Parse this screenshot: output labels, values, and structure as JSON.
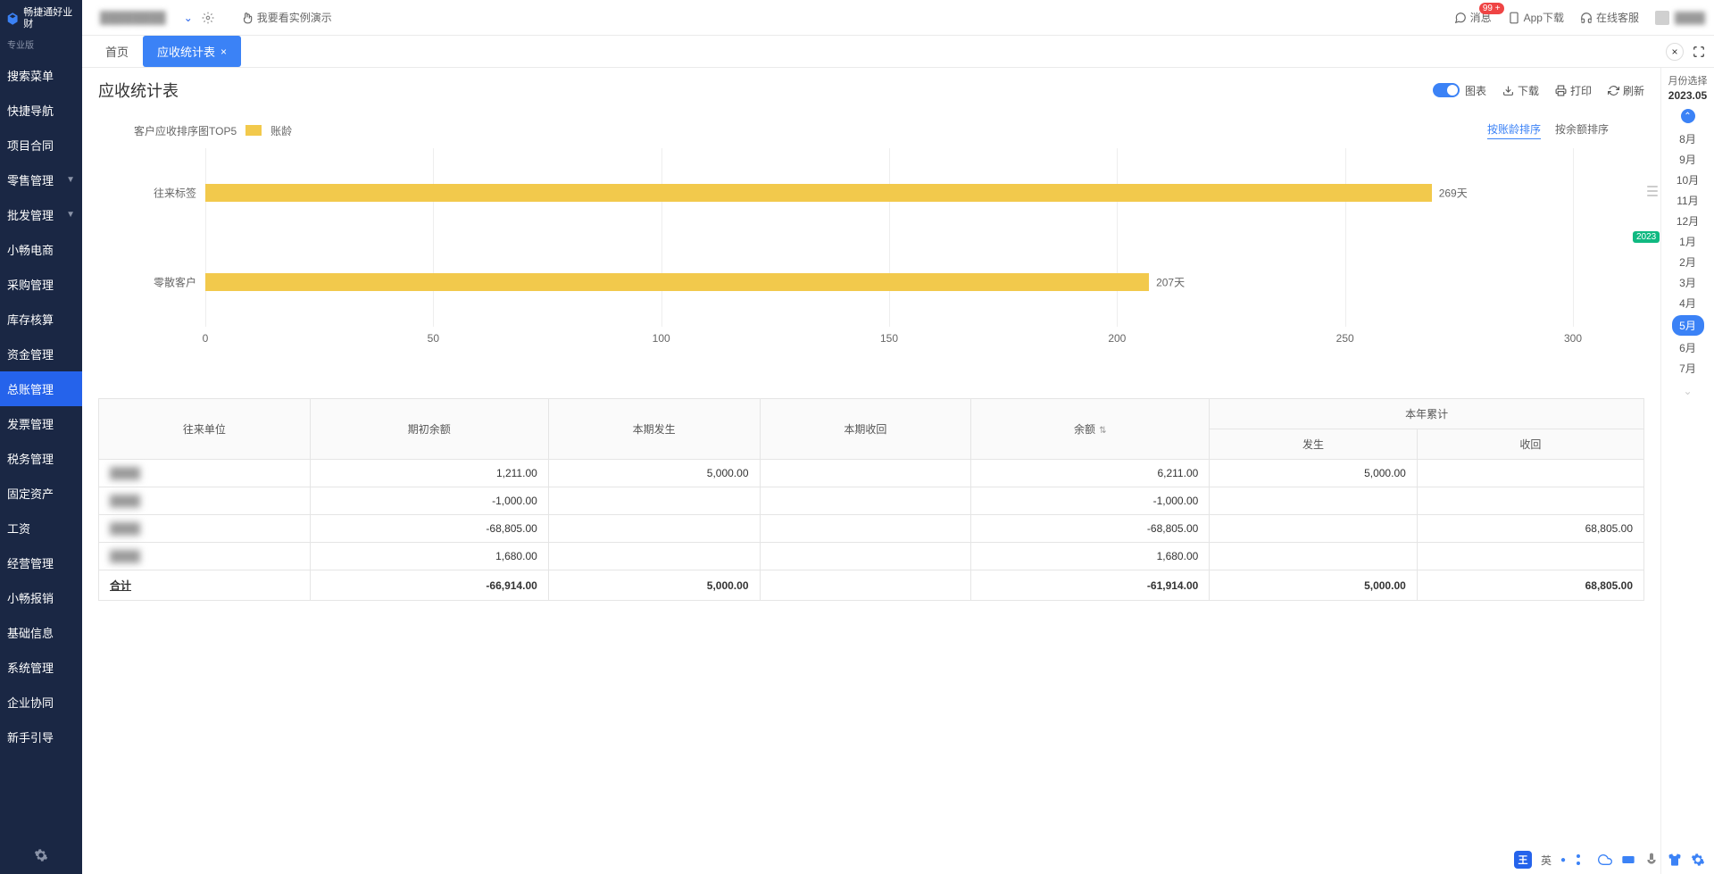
{
  "brand": {
    "name": "畅捷通好业财",
    "edition": "专业版"
  },
  "header": {
    "company": "████████",
    "demo": "我要看实例演示",
    "msg": "消息",
    "msg_badge": "99 +",
    "app": "App下载",
    "service": "在线客服",
    "user": "████"
  },
  "sidebar": {
    "items": [
      {
        "label": "搜索菜单",
        "chev": false
      },
      {
        "label": "快捷导航",
        "chev": false
      },
      {
        "label": "项目合同",
        "chev": false
      },
      {
        "label": "零售管理",
        "chev": true
      },
      {
        "label": "批发管理",
        "chev": true
      },
      {
        "label": "小畅电商",
        "chev": false
      },
      {
        "label": "采购管理",
        "chev": false
      },
      {
        "label": "库存核算",
        "chev": false
      },
      {
        "label": "资金管理",
        "chev": false
      },
      {
        "label": "总账管理",
        "chev": false,
        "active": true
      },
      {
        "label": "发票管理",
        "chev": false
      },
      {
        "label": "税务管理",
        "chev": false
      },
      {
        "label": "固定资产",
        "chev": false
      },
      {
        "label": "工资",
        "chev": false
      },
      {
        "label": "经营管理",
        "chev": false
      },
      {
        "label": "小畅报销",
        "chev": false
      },
      {
        "label": "基础信息",
        "chev": false
      },
      {
        "label": "系统管理",
        "chev": false
      },
      {
        "label": "企业协同",
        "chev": false
      },
      {
        "label": "新手引导",
        "chev": false
      }
    ]
  },
  "tabs": {
    "home": "首页",
    "active": "应收统计表"
  },
  "page": {
    "title": "应收统计表",
    "toggle_label": "图表",
    "download": "下载",
    "print": "打印",
    "refresh": "刷新"
  },
  "chart": {
    "title": "客户应收排序图TOP5",
    "legend": "账龄",
    "sort_by_age": "按账龄排序",
    "sort_by_balance": "按余额排序",
    "type": "horizontal-bar",
    "x_max": 300,
    "x_ticks": [
      0,
      50,
      100,
      150,
      200,
      250,
      300
    ],
    "bar_color": "#f2c94c",
    "grid_color": "#eeeeee",
    "bars": [
      {
        "label": "往来标签",
        "value": 269,
        "text": "269天"
      },
      {
        "label": "零散客户",
        "value": 207,
        "text": "207天"
      }
    ]
  },
  "table": {
    "columns": {
      "unit": "往来单位",
      "opening": "期初余额",
      "period_occur": "本期发生",
      "period_recover": "本期收回",
      "balance": "余额",
      "year_cum": "本年累计",
      "year_occur": "发生",
      "year_recover": "收回"
    },
    "rows": [
      {
        "unit": "████",
        "opening": "1,211.00",
        "period_occur": "5,000.00",
        "period_recover": "",
        "balance": "6,211.00",
        "year_occur": "5,000.00",
        "year_recover": ""
      },
      {
        "unit": "████",
        "opening": "-1,000.00",
        "period_occur": "",
        "period_recover": "",
        "balance": "-1,000.00",
        "year_occur": "",
        "year_recover": ""
      },
      {
        "unit": "████",
        "opening": "-68,805.00",
        "period_occur": "",
        "period_recover": "",
        "balance": "-68,805.00",
        "year_occur": "",
        "year_recover": "68,805.00"
      },
      {
        "unit": "████",
        "opening": "1,680.00",
        "period_occur": "",
        "period_recover": "",
        "balance": "1,680.00",
        "year_occur": "",
        "year_recover": ""
      }
    ],
    "total": {
      "label": "合计",
      "opening": "-66,914.00",
      "period_occur": "5,000.00",
      "period_recover": "",
      "balance": "-61,914.00",
      "year_occur": "5,000.00",
      "year_recover": "68,805.00"
    }
  },
  "month_panel": {
    "label": "月份选择",
    "current": "2023.05",
    "year_tag": "2023",
    "months": [
      "8月",
      "9月",
      "10月",
      "11月",
      "12月",
      "1月",
      "2月",
      "3月",
      "4月",
      "5月",
      "6月",
      "7月"
    ],
    "active_idx": 9,
    "year_tag_idx": 4
  },
  "taskbar": {
    "ime": "英"
  }
}
